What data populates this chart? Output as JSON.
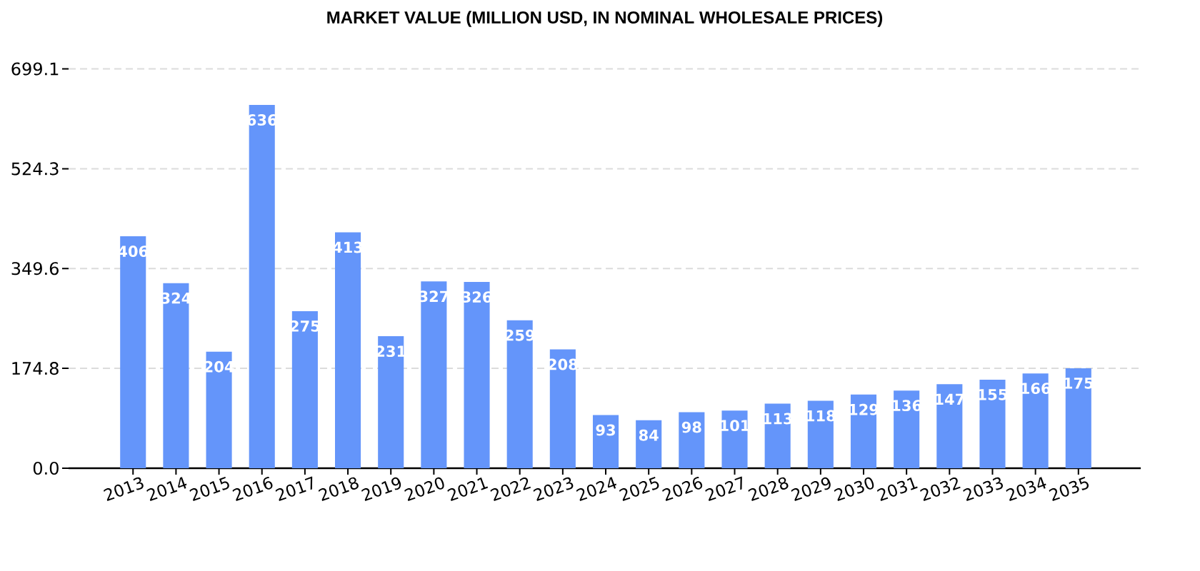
{
  "chart_data": {
    "type": "bar",
    "title": "MARKET VALUE (MILLION USD, IN NOMINAL WHOLESALE PRICES)",
    "categories": [
      "2013",
      "2014",
      "2015",
      "2016",
      "2017",
      "2018",
      "2019",
      "2020",
      "2021",
      "2022",
      "2023",
      "2024",
      "2025",
      "2026",
      "2027",
      "2028",
      "2029",
      "2030",
      "2031",
      "2032",
      "2033",
      "2034",
      "2035"
    ],
    "values": [
      406,
      324,
      204,
      636,
      275,
      413,
      231,
      327,
      326,
      259,
      208,
      93,
      84,
      98,
      101,
      113,
      118,
      129,
      136,
      147,
      155,
      166,
      175
    ],
    "color": "#6495fa",
    "ylim": [
      0,
      699.1
    ],
    "yticks": [
      {
        "value": 0,
        "label": "0.0"
      },
      174.8,
      349.6,
      524.3,
      699.1
    ],
    "grid": "y",
    "data_labels": true
  }
}
